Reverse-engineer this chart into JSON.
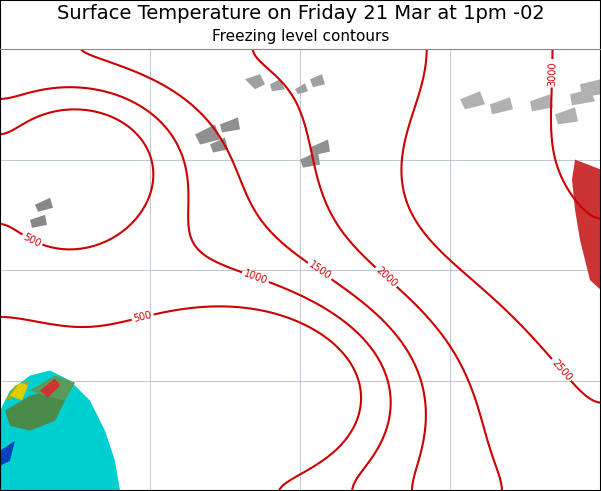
{
  "title": "Surface Temperature on Friday 21 Mar at 1pm -02",
  "subtitle": "Freezing level contours",
  "title_fontsize": 14,
  "subtitle_fontsize": 11,
  "background_ocean": "#c8d8f0",
  "background_header": "#ffffff",
  "contour_color": "#cc0000",
  "contour_linewidth": 1.5,
  "contour_label_fontsize": 7,
  "grid_color": "#b0b8d0",
  "land_colors": {
    "glacier": "#00cfcf",
    "rock_green": "#6aaa6a",
    "rock_yellow": "#dddd00",
    "rock_red": "#cc4444",
    "snow": "#ffffff",
    "dark_blue": "#0044aa"
  },
  "fig_width": 6.01,
  "fig_height": 4.91,
  "dpi": 100
}
